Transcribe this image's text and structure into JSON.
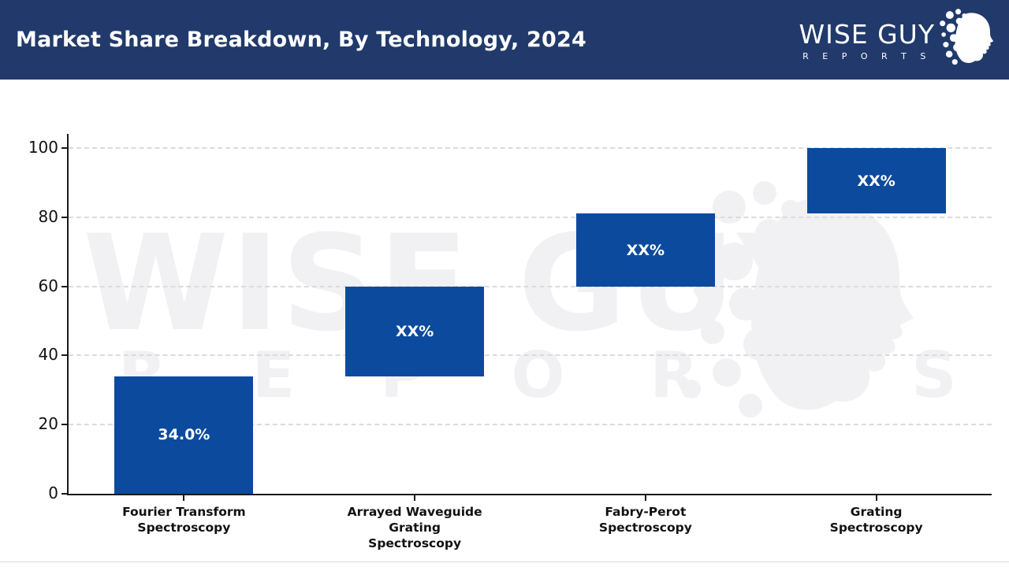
{
  "header": {
    "title": "Market Share Breakdown, By Technology, 2024",
    "logo": {
      "name": "WISE GUY",
      "tagline": "R E P O R T S"
    }
  },
  "watermark": {
    "line1": "WISE GUY",
    "line2": "R E P O R T S"
  },
  "colors": {
    "header_bg": "#213A6B",
    "bar": "#0C4A9E",
    "axis": "#1A1A1A",
    "grid": "#DBDBDB",
    "text": "#111111",
    "bar_label": "#FFFFFF",
    "watermark": "#F1F1F3"
  },
  "chart_data": {
    "type": "bar",
    "subtype": "waterfall",
    "title": "Market Share Breakdown, By Technology, 2024",
    "xlabel": "",
    "ylabel": "",
    "ylim": [
      0,
      100
    ],
    "yticks": [
      0,
      20,
      40,
      60,
      80,
      100
    ],
    "grid": "horizontal-dashed",
    "legend": "none",
    "categories": [
      "Fourier Transform\nSpectroscopy",
      "Arrayed Waveguide\nGrating\nSpectroscopy",
      "Fabry-Perot\nSpectroscopy",
      "Grating\nSpectroscopy"
    ],
    "series": [
      {
        "name": "Market Share",
        "segments": [
          {
            "category": "Fourier Transform Spectroscopy",
            "start": 0,
            "end": 34,
            "value": 34,
            "label": "34.0%"
          },
          {
            "category": "Arrayed Waveguide Grating Spectroscopy",
            "start": 34,
            "end": 60,
            "value": 26,
            "label": "XX%"
          },
          {
            "category": "Fabry-Perot Spectroscopy",
            "start": 60,
            "end": 81,
            "value": 21,
            "label": "XX%"
          },
          {
            "category": "Grating Spectroscopy",
            "start": 81,
            "end": 100,
            "value": 19,
            "label": "XX%"
          }
        ]
      }
    ]
  }
}
